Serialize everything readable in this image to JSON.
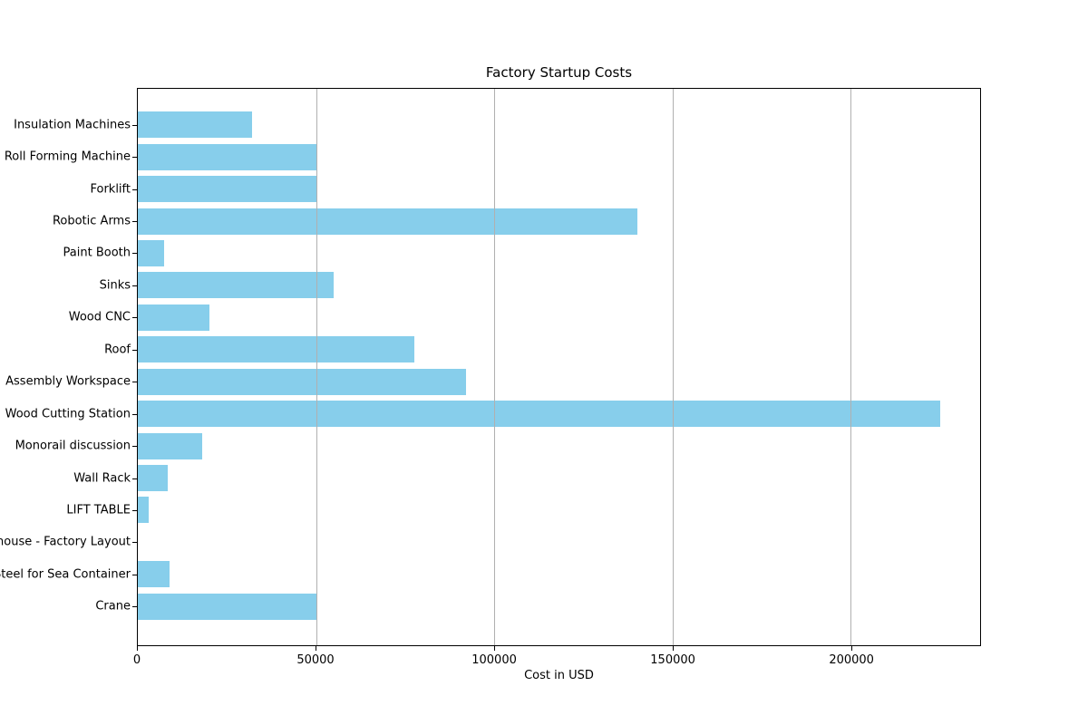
{
  "chart_data": {
    "type": "bar",
    "orientation": "horizontal",
    "title": "Factory Startup Costs",
    "xlabel": "Cost in USD",
    "ylabel": "",
    "categories": [
      "Insulation Machines",
      "Roll Forming Machine",
      "Forklift",
      "Robotic Arms",
      "Paint Booth",
      "Sinks",
      "Wood CNC",
      "Roof",
      "Assembly Workspace",
      "Wood Cutting Station",
      "Monorail discussion",
      "Wall Rack",
      "LIFT TABLE",
      "Warehouse - Factory Layout",
      "Steel for Sea Container",
      "Crane"
    ],
    "values": [
      32000,
      50000,
      50000,
      140000,
      7500,
      55000,
      20000,
      77500,
      92000,
      225000,
      18000,
      8500,
      3000,
      0,
      9000,
      50000
    ],
    "xticks": [
      0,
      50000,
      100000,
      150000,
      200000
    ],
    "xtick_labels": [
      "0",
      "50000",
      "100000",
      "150000",
      "200000"
    ],
    "xlim": [
      0,
      236250
    ],
    "bar_color": "#87CEEB",
    "grid": "vertical",
    "grid_color": "#b0b0b0",
    "legend": "none"
  }
}
